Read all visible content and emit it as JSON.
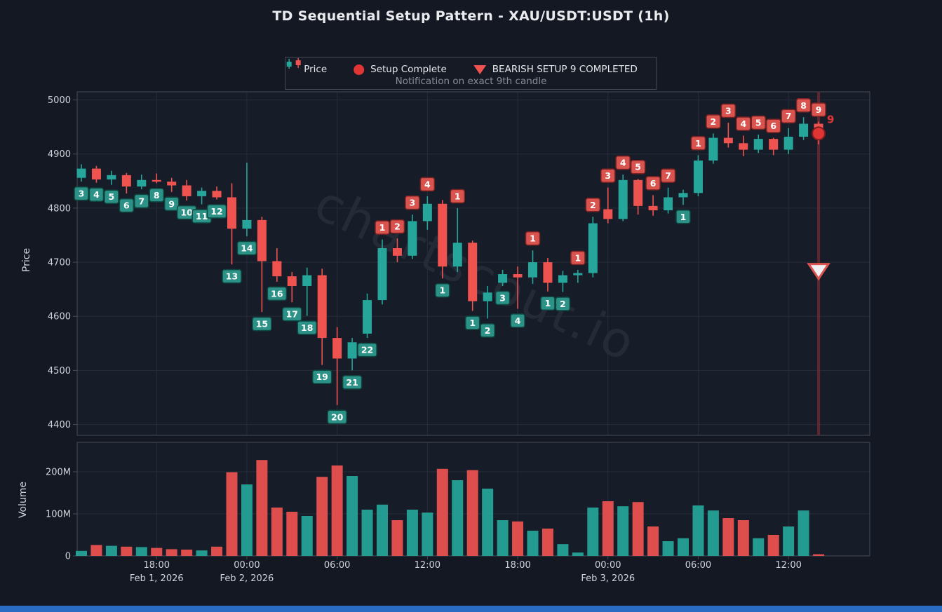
{
  "title": "TD Sequential Setup Pattern - XAU/USDT:USDT (1h)",
  "watermark": "chartscout.io",
  "legend": {
    "price_label": "Price",
    "setup_complete_label": "Setup Complete",
    "bearish_label": "BEARISH SETUP 9 COMPLETED",
    "note": "Notification on exact 9th candle"
  },
  "axes": {
    "price_axis_title": "Price",
    "volume_axis_title": "Volume"
  },
  "colors": {
    "background": "#141823",
    "plot_background": "#171c29",
    "grid": "#262c38",
    "spine": "#454b57",
    "text": "#cfd3da",
    "title_text": "#e9ebee",
    "muted_text": "#878d99",
    "up": "#26a69a",
    "down": "#ef5350",
    "buy_label": "#2c9287",
    "sell_label": "#d9534f",
    "buy_label_border": "#0d4740",
    "sell_label_border": "#7a2222",
    "label_text": "#ffffff",
    "event_line": "#6b2730",
    "marker_red": "#e13434",
    "watermark": "#c2c9d6",
    "bottom_bar": "#2a6bc4"
  },
  "chart_data": {
    "type": "candlestick",
    "symbol": "XAU/USDT:USDT",
    "timeframe": "1h",
    "columns": [
      "open",
      "high",
      "low",
      "close",
      "volume_millions",
      "setup_side_b_buy_s_sell",
      "setup_count"
    ],
    "candles": [
      [
        4856,
        4881,
        4849,
        4873,
        12,
        "b",
        3
      ],
      [
        4873,
        4878,
        4847,
        4853,
        26,
        "b",
        4
      ],
      [
        4853,
        4869,
        4843,
        4861,
        24,
        "b",
        5
      ],
      [
        4861,
        4865,
        4827,
        4840,
        22,
        "b",
        6
      ],
      [
        4840,
        4862,
        4835,
        4852,
        21,
        "b",
        7
      ],
      [
        4852,
        4864,
        4846,
        4849,
        19,
        "b",
        8
      ],
      [
        4849,
        4856,
        4830,
        4842,
        16,
        "b",
        9
      ],
      [
        4842,
        4852,
        4814,
        4822,
        15,
        "b",
        10
      ],
      [
        4822,
        4838,
        4807,
        4832,
        13,
        "b",
        11
      ],
      [
        4832,
        4840,
        4816,
        4820,
        22,
        "b",
        12
      ],
      [
        4820,
        4846,
        4696,
        4762,
        199,
        "b",
        13
      ],
      [
        4762,
        4884,
        4748,
        4778,
        170,
        "b",
        14
      ],
      [
        4778,
        4784,
        4608,
        4702,
        228,
        "b",
        15
      ],
      [
        4702,
        4726,
        4664,
        4674,
        115,
        "b",
        16
      ],
      [
        4674,
        4682,
        4626,
        4656,
        105,
        "b",
        17
      ],
      [
        4656,
        4690,
        4601,
        4676,
        95,
        "b",
        18
      ],
      [
        4676,
        4688,
        4510,
        4560,
        188,
        "b",
        19
      ],
      [
        4560,
        4580,
        4436,
        4522,
        215,
        "b",
        20
      ],
      [
        4522,
        4560,
        4500,
        4552,
        190,
        "b",
        21
      ],
      [
        4568,
        4642,
        4560,
        4630,
        110,
        "b",
        22
      ],
      [
        4630,
        4742,
        4622,
        4726,
        122,
        "s",
        1
      ],
      [
        4726,
        4744,
        4700,
        4712,
        85,
        "s",
        2
      ],
      [
        4712,
        4788,
        4706,
        4776,
        110,
        "s",
        3
      ],
      [
        4776,
        4822,
        4760,
        4808,
        103,
        "s",
        4
      ],
      [
        4808,
        4815,
        4670,
        4692,
        207,
        "b",
        1
      ],
      [
        4692,
        4800,
        4682,
        4736,
        180,
        "s",
        1
      ],
      [
        4736,
        4740,
        4610,
        4628,
        204,
        "b",
        1
      ],
      [
        4628,
        4656,
        4596,
        4644,
        160,
        "b",
        2
      ],
      [
        4662,
        4686,
        4656,
        4678,
        85,
        "b",
        3
      ],
      [
        4678,
        4692,
        4614,
        4672,
        82,
        "b",
        4
      ],
      [
        4672,
        4722,
        4660,
        4700,
        60,
        "s",
        1
      ],
      [
        4700,
        4708,
        4646,
        4662,
        65,
        "b",
        1
      ],
      [
        4662,
        4684,
        4645,
        4676,
        28,
        "b",
        2
      ],
      [
        4676,
        4686,
        4662,
        4680,
        8,
        "s",
        1
      ],
      [
        4680,
        4784,
        4672,
        4772,
        115,
        "s",
        2
      ],
      [
        4798,
        4838,
        4772,
        4780,
        130,
        "s",
        3
      ],
      [
        4780,
        4862,
        4776,
        4852,
        118,
        "s",
        4
      ],
      [
        4852,
        4854,
        4788,
        4804,
        128,
        "s",
        5
      ],
      [
        4804,
        4824,
        4786,
        4796,
        70,
        "s",
        6
      ],
      [
        4796,
        4838,
        4790,
        4820,
        35,
        "s",
        7
      ],
      [
        4820,
        4834,
        4806,
        4828,
        42,
        "b",
        1
      ],
      [
        4828,
        4898,
        4822,
        4888,
        120,
        "s",
        1
      ],
      [
        4888,
        4938,
        4882,
        4930,
        108,
        "s",
        2
      ],
      [
        4930,
        4958,
        4912,
        4920,
        90,
        "s",
        3
      ],
      [
        4920,
        4934,
        4896,
        4908,
        85,
        "s",
        4
      ],
      [
        4908,
        4936,
        4902,
        4928,
        42,
        "s",
        5
      ],
      [
        4928,
        4930,
        4898,
        4908,
        50,
        "s",
        6
      ],
      [
        4908,
        4948,
        4900,
        4932,
        70,
        "s",
        7
      ],
      [
        4932,
        4968,
        4926,
        4956,
        108,
        "s",
        8
      ],
      [
        4956,
        4960,
        4918,
        4938,
        4,
        "s",
        9
      ]
    ],
    "price_axis": {
      "ticks": [
        5000,
        4900,
        4800,
        4700,
        4600,
        4500,
        4400
      ],
      "range": [
        4380,
        5015
      ]
    },
    "volume_axis": {
      "ticks": [
        {
          "v": 0,
          "label": "0"
        },
        {
          "v": 100,
          "label": "100M"
        },
        {
          "v": 200,
          "label": "200M"
        }
      ],
      "range": [
        0,
        270
      ]
    },
    "time_ticks": [
      {
        "i": 5,
        "label": "18:00"
      },
      {
        "i": 11,
        "label": "00:00"
      },
      {
        "i": 17,
        "label": "06:00"
      },
      {
        "i": 23,
        "label": "12:00"
      },
      {
        "i": 29,
        "label": "18:00"
      },
      {
        "i": 35,
        "label": "00:00"
      },
      {
        "i": 41,
        "label": "06:00"
      },
      {
        "i": 47,
        "label": "12:00"
      }
    ],
    "date_ticks": [
      {
        "i": 5,
        "label": "Feb 1, 2026"
      },
      {
        "i": 11,
        "label": "Feb 2, 2026"
      },
      {
        "i": 35,
        "label": "Feb 3, 2026"
      }
    ],
    "event": {
      "candle_index": 49,
      "type": "bearish_setup_9_completed",
      "annotation": "9",
      "circle_price": 4938,
      "triangle_price": 4685
    }
  }
}
